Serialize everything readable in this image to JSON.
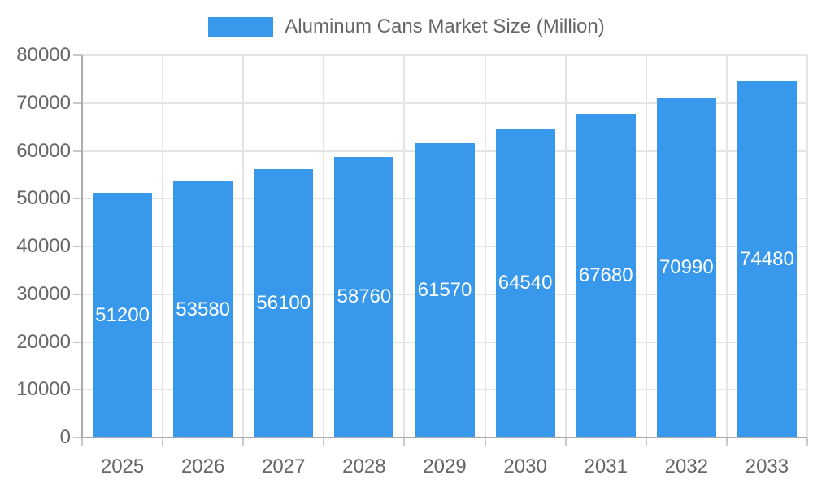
{
  "chart_data": {
    "type": "bar",
    "title": "",
    "xlabel": "",
    "ylabel": "",
    "categories": [
      "2025",
      "2026",
      "2027",
      "2028",
      "2029",
      "2030",
      "2031",
      "2032",
      "2033"
    ],
    "series": [
      {
        "name": "Aluminum Cans Market Size (Million)",
        "color": "#3899EC",
        "values": [
          51200,
          53580,
          56100,
          58760,
          61570,
          64540,
          67680,
          70990,
          74480
        ]
      }
    ],
    "value_labels": [
      "51200",
      "53580",
      "56100",
      "58760",
      "61570",
      "64540",
      "67680",
      "70990",
      "74480"
    ],
    "value_label_color": "#FFFFFF",
    "ylim": [
      0,
      80000
    ],
    "ytick_step": 10000,
    "y_tick_labels": [
      "0",
      "10000",
      "20000",
      "30000",
      "40000",
      "50000",
      "60000",
      "70000",
      "80000"
    ],
    "legend_position": "top",
    "grid": true,
    "axis_text_color": "#666666"
  }
}
